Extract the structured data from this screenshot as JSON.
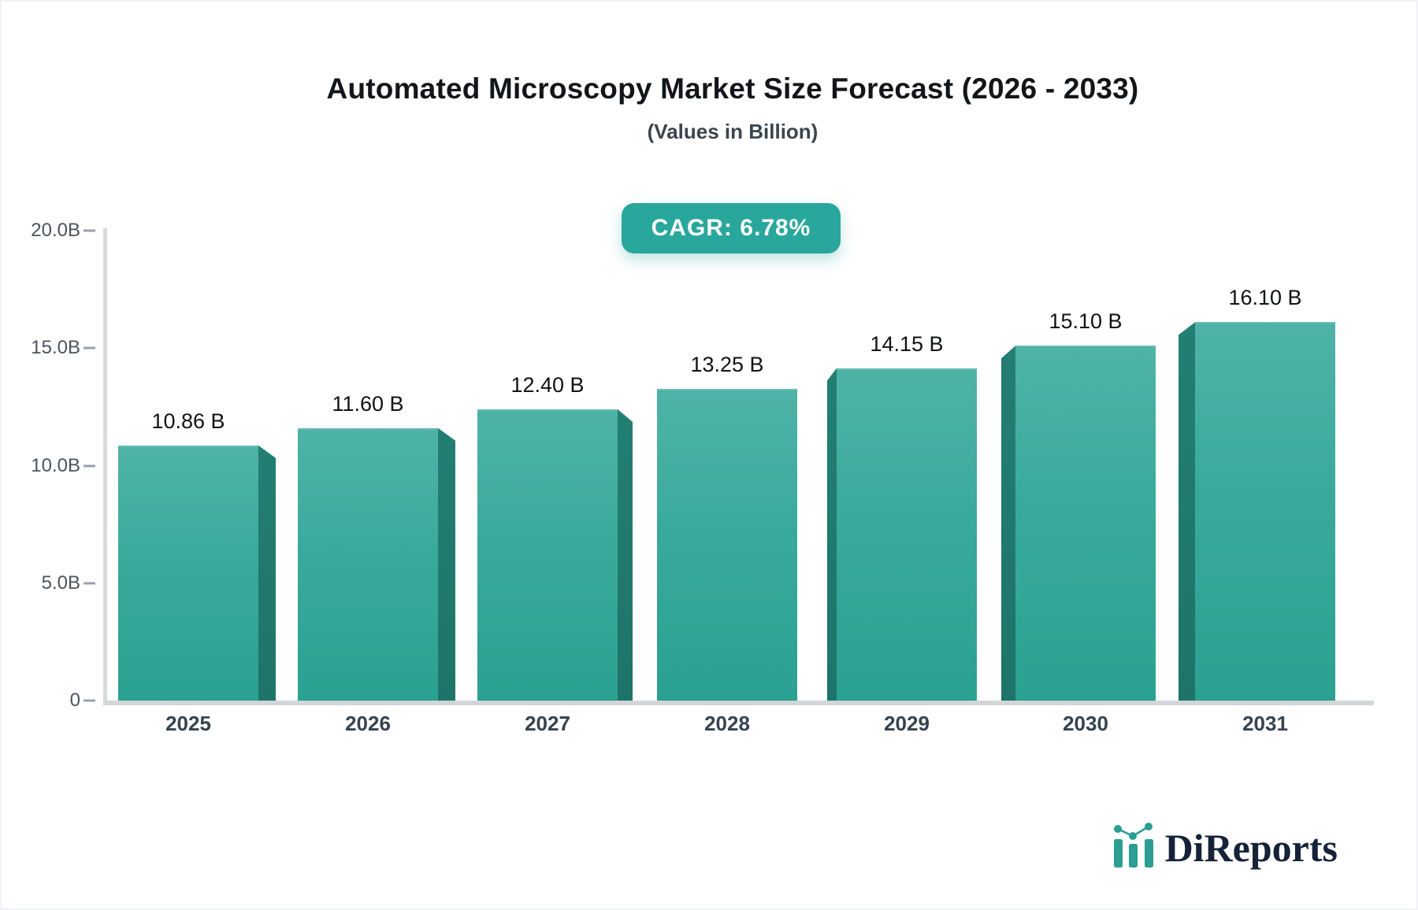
{
  "header": {
    "title": "Automated Microscopy Market Size Forecast (2026 - 2033)",
    "subtitle": "(Values in Billion)",
    "cagr_badge_label": "CAGR: 6.78%"
  },
  "chart_data": {
    "type": "bar",
    "title": "Automated Microscopy Market Size Forecast (2026 - 2033)",
    "subtitle": "(Values in Billion)",
    "cagr": "6.78%",
    "categories": [
      "2025",
      "2026",
      "2027",
      "2028",
      "2029",
      "2030",
      "2031"
    ],
    "values": [
      10.86,
      11.6,
      12.4,
      13.25,
      14.15,
      15.1,
      16.1
    ],
    "bar_labels": [
      "10.86 B",
      "11.60 B",
      "12.40 B",
      "13.25 B",
      "14.15 B",
      "15.10 B",
      "16.10 B"
    ],
    "unit": "Billion",
    "ylim": [
      0,
      20
    ],
    "y_ticks": [
      {
        "label": "20.0B",
        "value": 20
      },
      {
        "label": "15.0B",
        "value": 15
      },
      {
        "label": "10.0B",
        "value": 10
      },
      {
        "label": "5.0B",
        "value": 5
      },
      {
        "label": "0",
        "value": 0
      }
    ],
    "grid": false,
    "legend": false,
    "colors": {
      "bar_face_top": "#4fb3a7",
      "bar_face_bottom": "#2ba192",
      "bar_side": "#1f7d71",
      "badge": "#2aa79c",
      "axis_line": "#d4d8dc",
      "tick_text": "#4a545e",
      "category_text": "#36434f",
      "value_text": "#101215"
    }
  },
  "branding": {
    "logo_text": "DiReports",
    "logo_text_color": "#152238",
    "logo_icon": "mini-bar-line-chart-icon",
    "logo_icon_color": "#2b9d92"
  }
}
